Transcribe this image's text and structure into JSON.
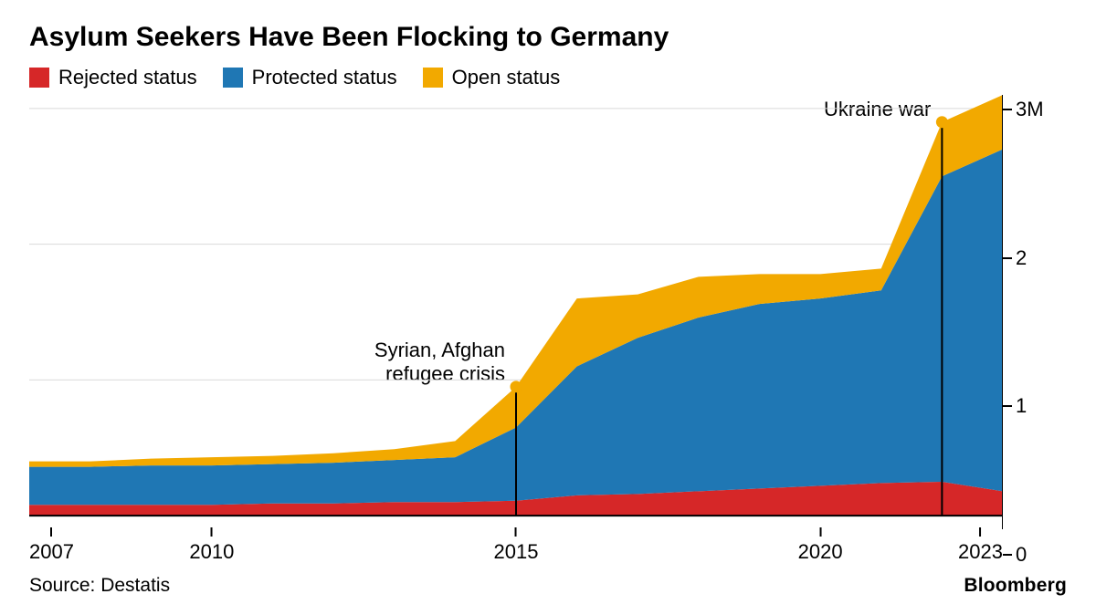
{
  "title": "Asylum Seekers Have Been Flocking to Germany",
  "source_line": "Source: Destatis",
  "brand": "Bloomberg",
  "chart": {
    "type": "stacked-area",
    "background_color": "#ffffff",
    "gridline_color": "#d9d9d9",
    "axis_color": "#000000",
    "text_color": "#000000",
    "x": {
      "min": 2007,
      "max": 2023,
      "ticks": [
        2007,
        2010,
        2015,
        2020,
        2023
      ],
      "tick_labels": [
        "2007",
        "2010",
        "2015",
        "2020",
        "2023"
      ]
    },
    "y": {
      "min": -0.1,
      "max": 3.1,
      "baseline": 0,
      "ticks": [
        0,
        1,
        2,
        3
      ],
      "tick_labels": [
        "0",
        "1",
        "2",
        "3M"
      ]
    },
    "years": [
      2007,
      2008,
      2009,
      2010,
      2011,
      2012,
      2013,
      2014,
      2015,
      2016,
      2017,
      2018,
      2019,
      2020,
      2021,
      2022,
      2023
    ],
    "series": [
      {
        "key": "rejected",
        "label": "Rejected status",
        "color": "#d62728",
        "values": [
          0.08,
          0.08,
          0.08,
          0.08,
          0.09,
          0.09,
          0.1,
          0.1,
          0.11,
          0.15,
          0.16,
          0.18,
          0.2,
          0.22,
          0.24,
          0.25,
          0.18
        ]
      },
      {
        "key": "protected",
        "label": "Protected status",
        "color": "#1f77b4",
        "values": [
          0.28,
          0.28,
          0.29,
          0.29,
          0.29,
          0.3,
          0.31,
          0.33,
          0.54,
          0.95,
          1.15,
          1.28,
          1.36,
          1.38,
          1.42,
          2.25,
          2.52
        ]
      },
      {
        "key": "open",
        "label": "Open status",
        "color": "#f2a900",
        "values": [
          0.04,
          0.04,
          0.05,
          0.06,
          0.06,
          0.07,
          0.08,
          0.12,
          0.3,
          0.5,
          0.32,
          0.3,
          0.22,
          0.18,
          0.16,
          0.4,
          0.4
        ]
      }
    ],
    "event_lines": [
      {
        "key": "syrian_afghan",
        "label": "Syrian, Afghan\nrefugee crisis",
        "year": 2015,
        "marker_color": "#f2a900",
        "label_side": "left"
      },
      {
        "key": "ukraine_war",
        "label": "Ukraine war",
        "year": 2022,
        "marker_color": "#f2a900",
        "label_side": "left"
      }
    ],
    "fonts": {
      "title_pt": 30,
      "legend_pt": 22,
      "axis_pt": 22,
      "annotation_pt": 22,
      "footer_pt": 21
    },
    "line_width_axis": 2,
    "line_width_event": 2,
    "marker_radius": 6
  }
}
